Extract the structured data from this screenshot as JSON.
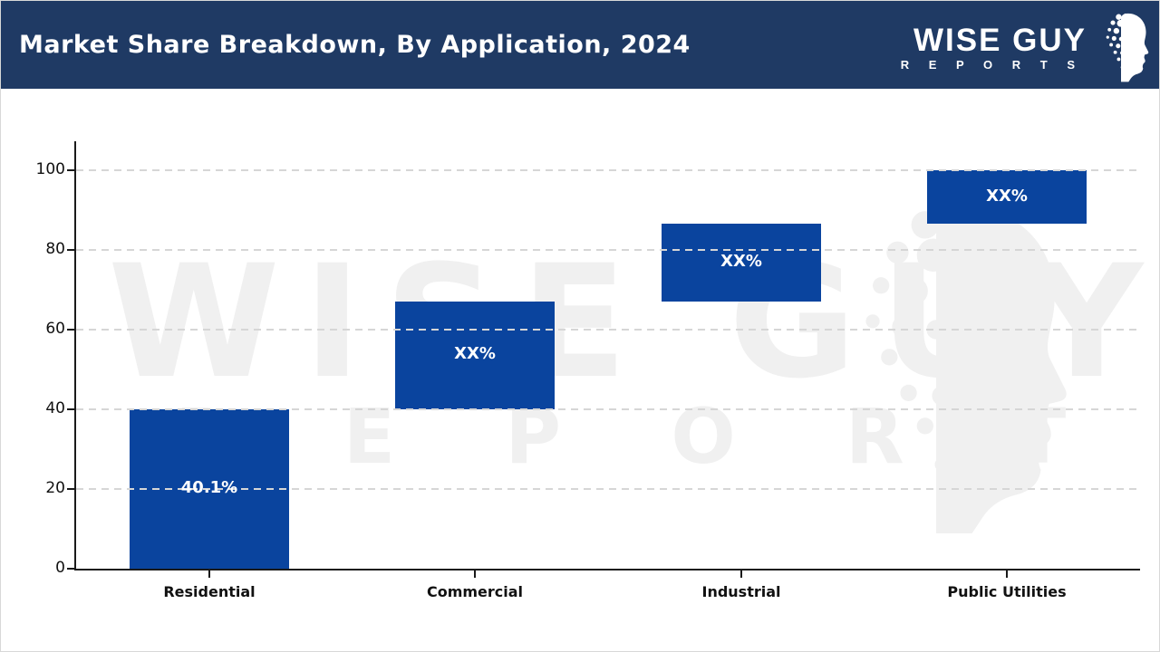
{
  "header": {
    "title": "Market Share Breakdown, By Application, 2024",
    "logo": {
      "name_line": "WISE GUY",
      "reports_line": "R E P O R T S"
    }
  },
  "chart_data": {
    "type": "bar",
    "variant": "waterfall",
    "title": "Market Share Breakdown, By Application, 2024",
    "categories": [
      "Residential",
      "Commercial",
      "Industrial",
      "Public Utilities"
    ],
    "segments": [
      {
        "category": "Residential",
        "start": 0,
        "end": 40.1,
        "label": "40.1%"
      },
      {
        "category": "Commercial",
        "start": 40.1,
        "end": 67.1,
        "label": "XX%"
      },
      {
        "category": "Industrial",
        "start": 67.1,
        "end": 86.5,
        "label": "XX%"
      },
      {
        "category": "Public Utilities",
        "start": 86.5,
        "end": 100,
        "label": "XX%"
      }
    ],
    "xlabel": "",
    "ylabel": "",
    "ylim": [
      0,
      106
    ],
    "yticks": [
      0,
      20,
      40,
      60,
      80,
      100
    ],
    "grid": "horizontal dashed",
    "legend": "none"
  },
  "watermark": {
    "line1": "WISE GUY",
    "line2": "R E P O R T S"
  },
  "colors": {
    "header_bg": "#1f3a64",
    "bar": "#0a449e",
    "bar_label": "#ffffff",
    "grid_line": "#d6d6d6",
    "axis_line": "#1a1a1a",
    "tick_label": "#111111",
    "watermark": "#f0f0f0"
  }
}
